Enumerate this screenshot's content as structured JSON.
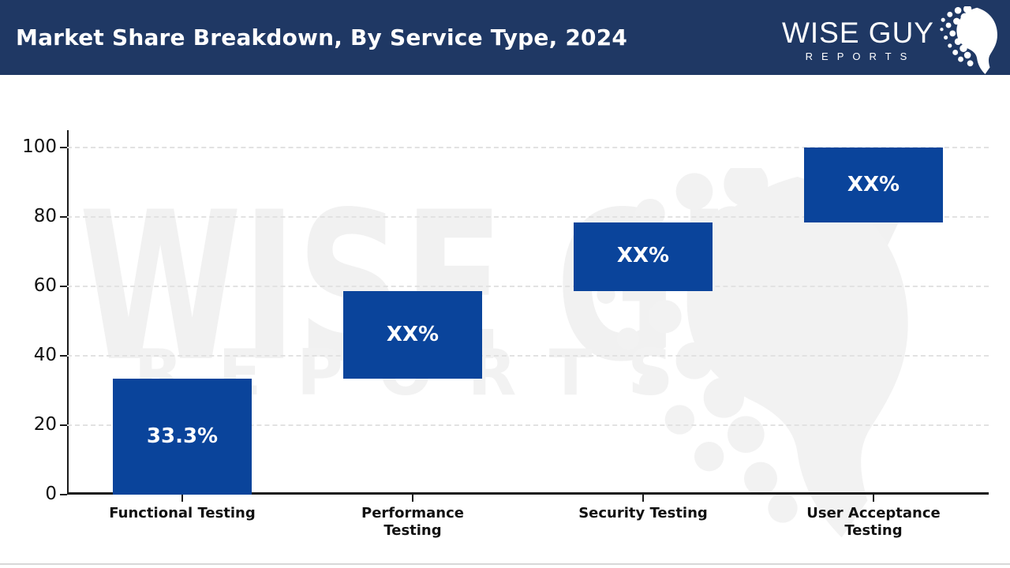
{
  "header": {
    "title": "Market Share Breakdown, By Service Type, 2024",
    "logo": {
      "line1": "WISE GUY",
      "line2": "REPORTS"
    }
  },
  "watermark": {
    "line1": "WISE GUY",
    "line2": "REPORTS"
  },
  "chart_data": {
    "type": "bar",
    "subtype": "waterfall-stepped",
    "title": "Market Share Breakdown, By Service Type, 2024",
    "categories": [
      "Functional Testing",
      "Performance\nTesting",
      "Security Testing",
      "User Acceptance\nTesting"
    ],
    "segments": [
      {
        "category": "Functional Testing",
        "label": "33.3%",
        "start": 0,
        "end": 33.3
      },
      {
        "category": "Performance Testing",
        "label": "XX%",
        "start": 33.3,
        "end": 58.7
      },
      {
        "category": "Security Testing",
        "label": "XX%",
        "start": 58.7,
        "end": 78.4
      },
      {
        "category": "User Acceptance Testing",
        "label": "XX%",
        "start": 78.4,
        "end": 100
      }
    ],
    "y_ticks": [
      0,
      20,
      40,
      60,
      80,
      100
    ],
    "ylim": [
      0,
      100
    ],
    "xlabel": "",
    "ylabel": "",
    "grid": "horizontal-dashed",
    "legend": "none",
    "bar_color": "#0a449b"
  },
  "colors": {
    "header_bg": "#1f3864",
    "bar": "#0a449b",
    "axis": "#1a1a1a",
    "grid": "#e2e2e2",
    "watermark": "#f1f1f1",
    "bar_label_text": "#ffffff"
  }
}
